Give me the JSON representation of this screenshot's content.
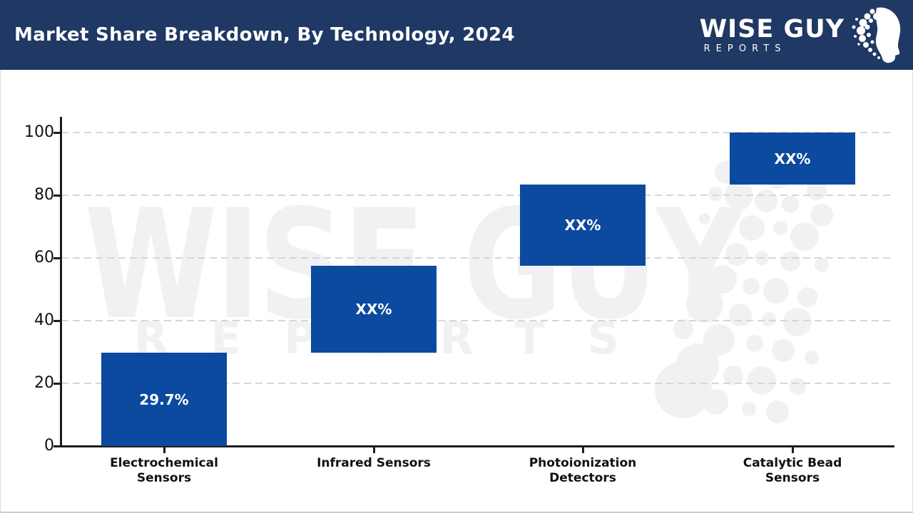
{
  "header": {
    "title": "Market Share Breakdown, By Technology, 2024",
    "logo": {
      "line1": "WISE GUY",
      "line2": "REPORTS"
    }
  },
  "watermark": {
    "line1": "WISE GUY",
    "line2": "REPORTS"
  },
  "colors": {
    "header_bg": "#1f3864",
    "bar": "#0b4a9e",
    "axis": "#1c1c1c",
    "gridline": "#d6d6d6",
    "bar_label_text": "#ffffff",
    "tick_text": "#111111",
    "watermark": "#f1f1f3"
  },
  "chart_data": {
    "type": "bar",
    "subtype": "waterfall",
    "title": "Market Share Breakdown, By Technology, 2024",
    "xlabel": "",
    "ylabel": "",
    "ylim": [
      0,
      100
    ],
    "yticks": [
      0,
      20,
      40,
      60,
      80,
      100
    ],
    "grid": "horizontal-dashed",
    "legend": "none",
    "categories": [
      "Electrochemical Sensors",
      "Infrared Sensors",
      "Photoionization Detectors",
      "Catalytic Bead Sensors"
    ],
    "bars": [
      {
        "category": "Electrochemical Sensors",
        "category_lines": [
          "Electrochemical",
          "Sensors"
        ],
        "start": 0,
        "end": 29.7,
        "value": 29.7,
        "label": "29.7%"
      },
      {
        "category": "Infrared Sensors",
        "category_lines": [
          "Infrared Sensors"
        ],
        "start": 29.7,
        "end": 57.5,
        "value": 27.8,
        "label": "XX%"
      },
      {
        "category": "Photoionization Detectors",
        "category_lines": [
          "Photoionization",
          "Detectors"
        ],
        "start": 57.5,
        "end": 83.4,
        "value": 25.9,
        "label": "XX%"
      },
      {
        "category": "Catalytic Bead Sensors",
        "category_lines": [
          "Catalytic Bead",
          "Sensors"
        ],
        "start": 83.4,
        "end": 100,
        "value": 16.6,
        "label": "XX%"
      }
    ]
  }
}
